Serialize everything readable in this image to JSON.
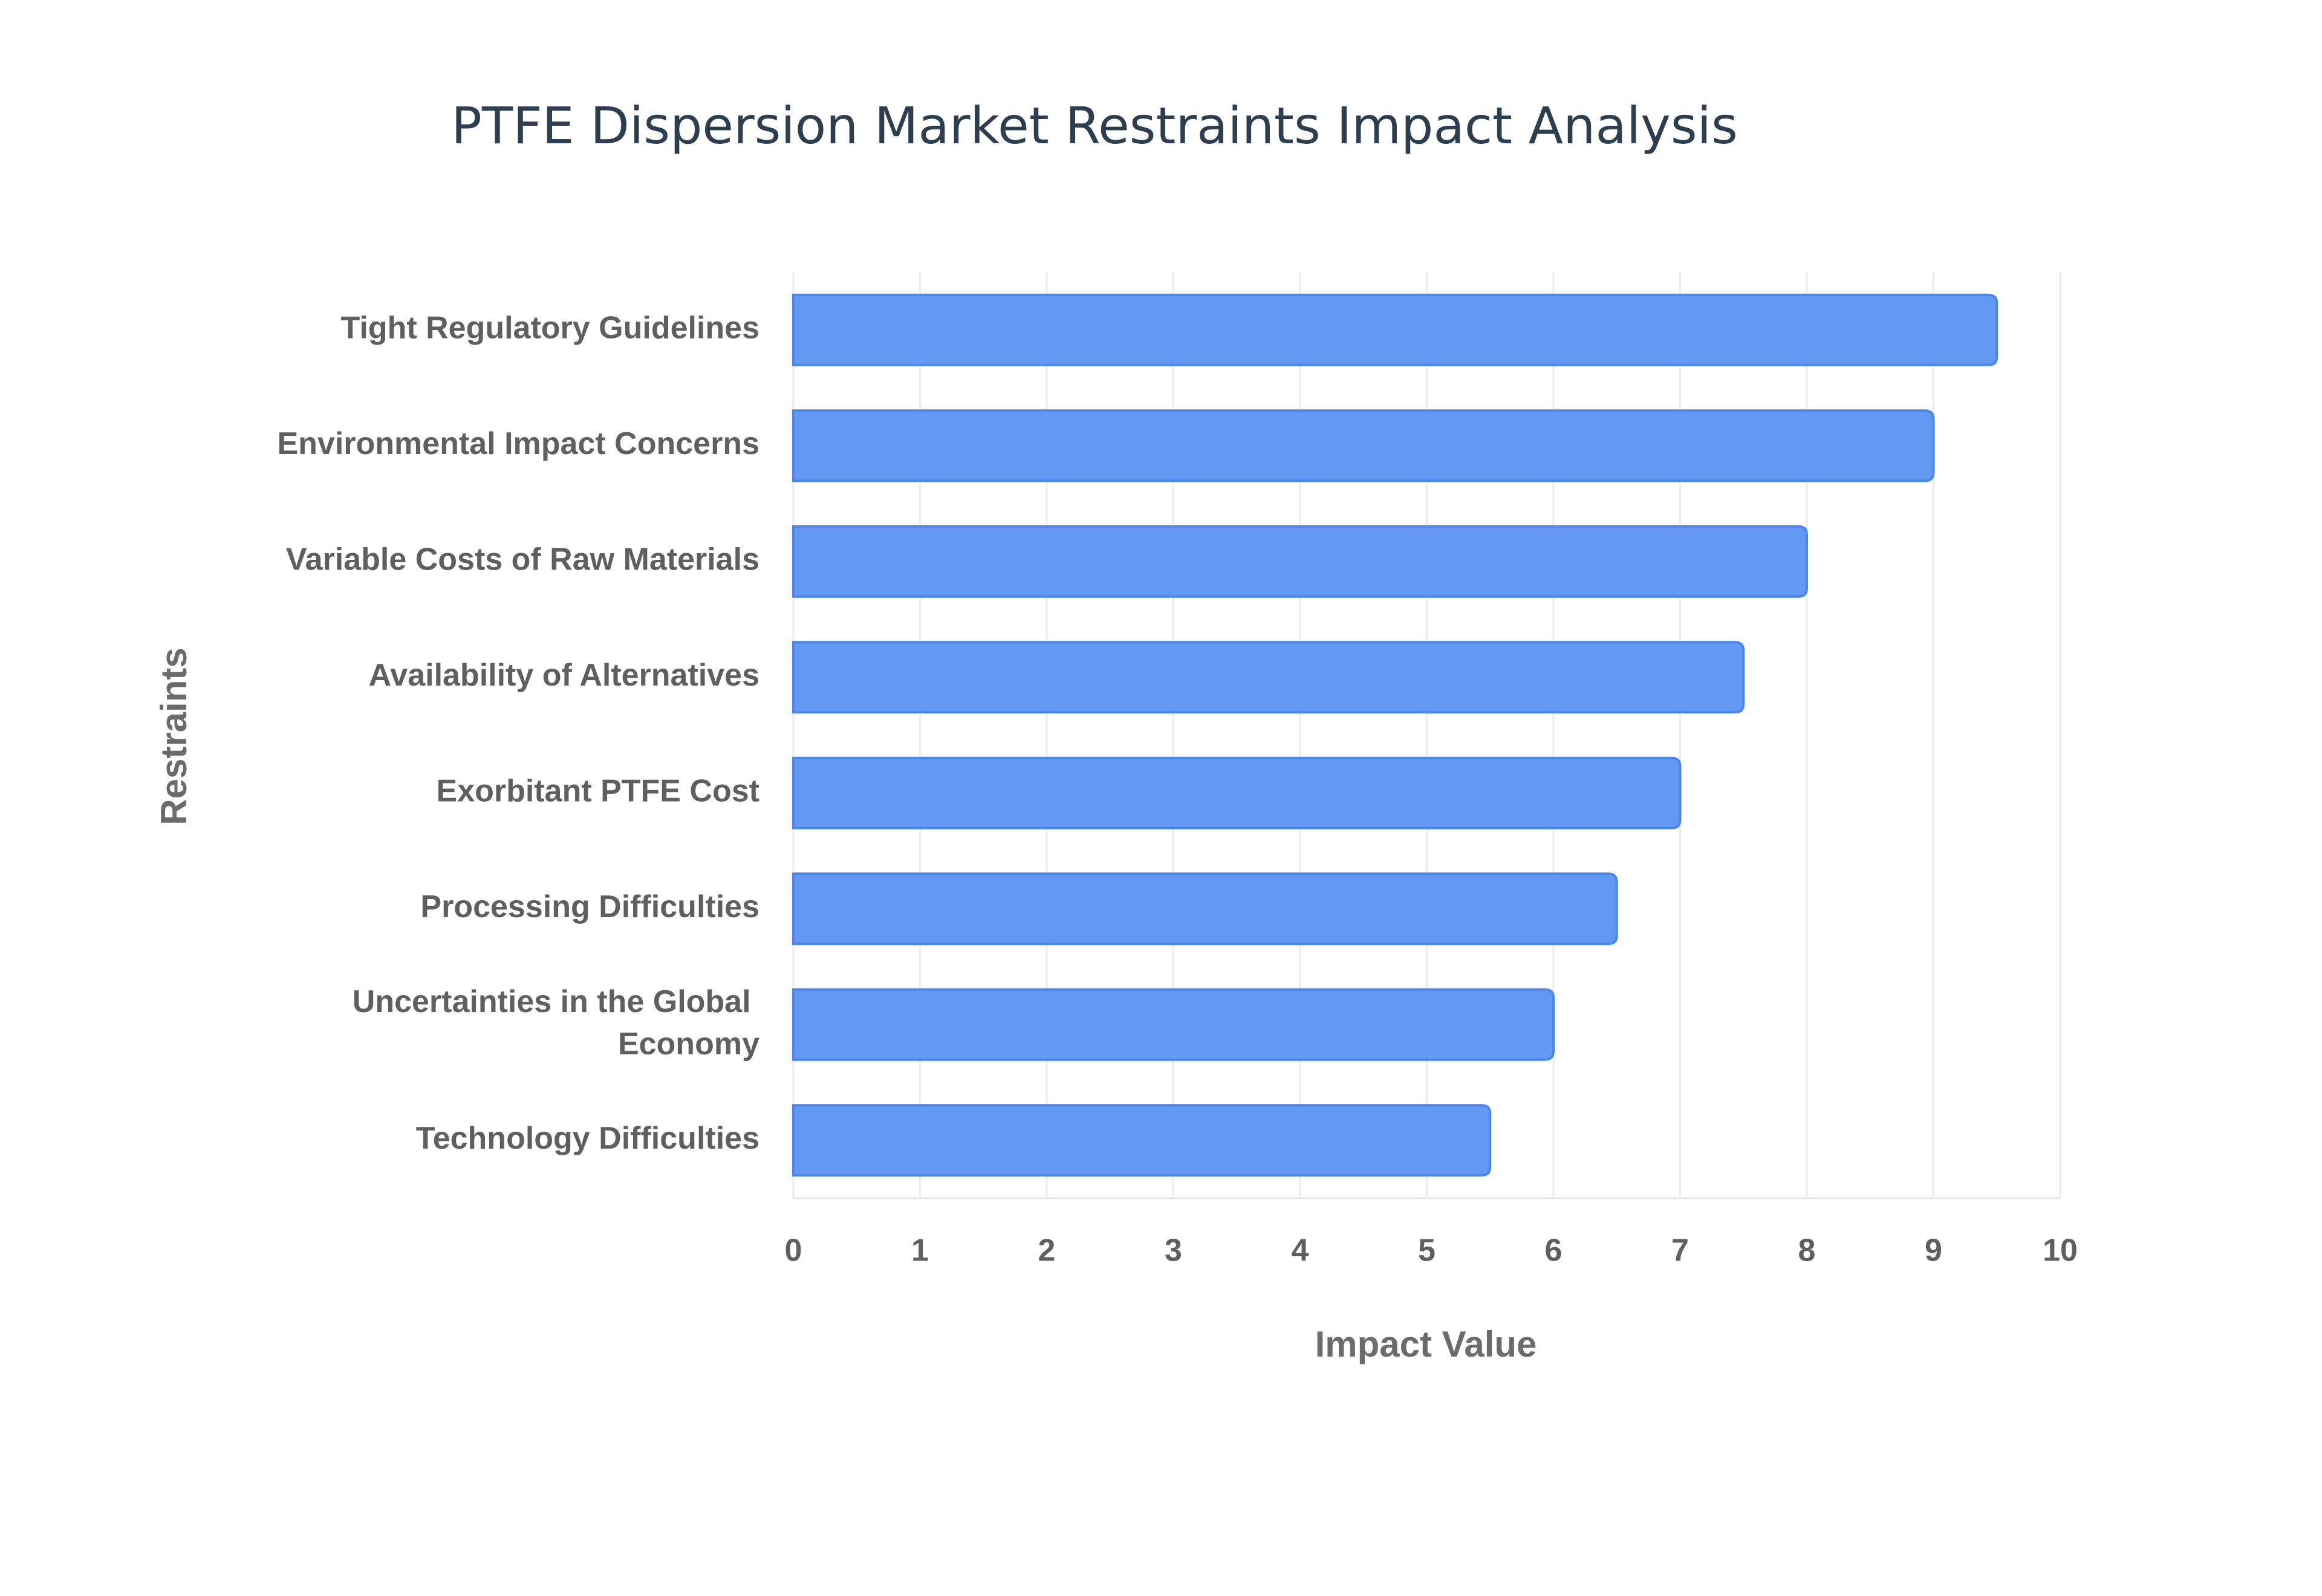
{
  "chart_data": {
    "type": "bar",
    "orientation": "horizontal",
    "title": "PTFE Dispersion Market Restraints Impact Analysis",
    "x_label": "Impact Value",
    "y_label": "Restraints",
    "categories": [
      "Tight Regulatory Guidelines",
      "Environmental Impact Concerns",
      "Variable Costs of Raw Materials",
      "Availability of Alternatives",
      "Exorbitant PTFE Cost",
      "Processing Difficulties",
      "Uncertainties in the Global Economy",
      "Technology Difficulties"
    ],
    "values": [
      9.5,
      9,
      8,
      7.5,
      7,
      6.5,
      6,
      5.5
    ],
    "color": "#6399f2",
    "edge_color": "#4a86ec",
    "xlim": [
      0,
      10
    ],
    "xticks": [
      0,
      1,
      2,
      3,
      4,
      5,
      6,
      7,
      8,
      9,
      10
    ],
    "grid": true
  }
}
